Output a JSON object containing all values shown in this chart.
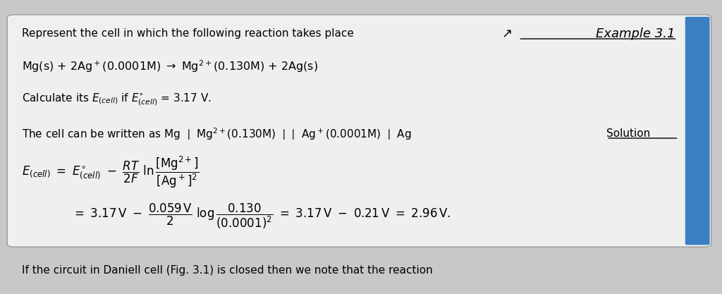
{
  "background_color": "#c8c8c8",
  "card_color": "#efefef",
  "blue_bar_color": "#3a7fc1",
  "title_text": "Example 3.1",
  "line1": "Represent the cell in which the following reaction takes place",
  "line2": "Mg(s) + 2Ag+(0.0001M) -> Mg2+(0.130M) + 2Ag(s)",
  "line3": "Calculate its E(cell) if E0(cell) = 3.17 V.",
  "line4": "The cell can be written as Mg | Mg2+(0.130M) || Ag+(0.0001M) | Ag",
  "bottom_text": "If the circuit in Daniell cell (Fig. 3.1) is closed then we note that the reaction",
  "figsize": [
    10.24,
    4.17
  ],
  "dpi": 100
}
